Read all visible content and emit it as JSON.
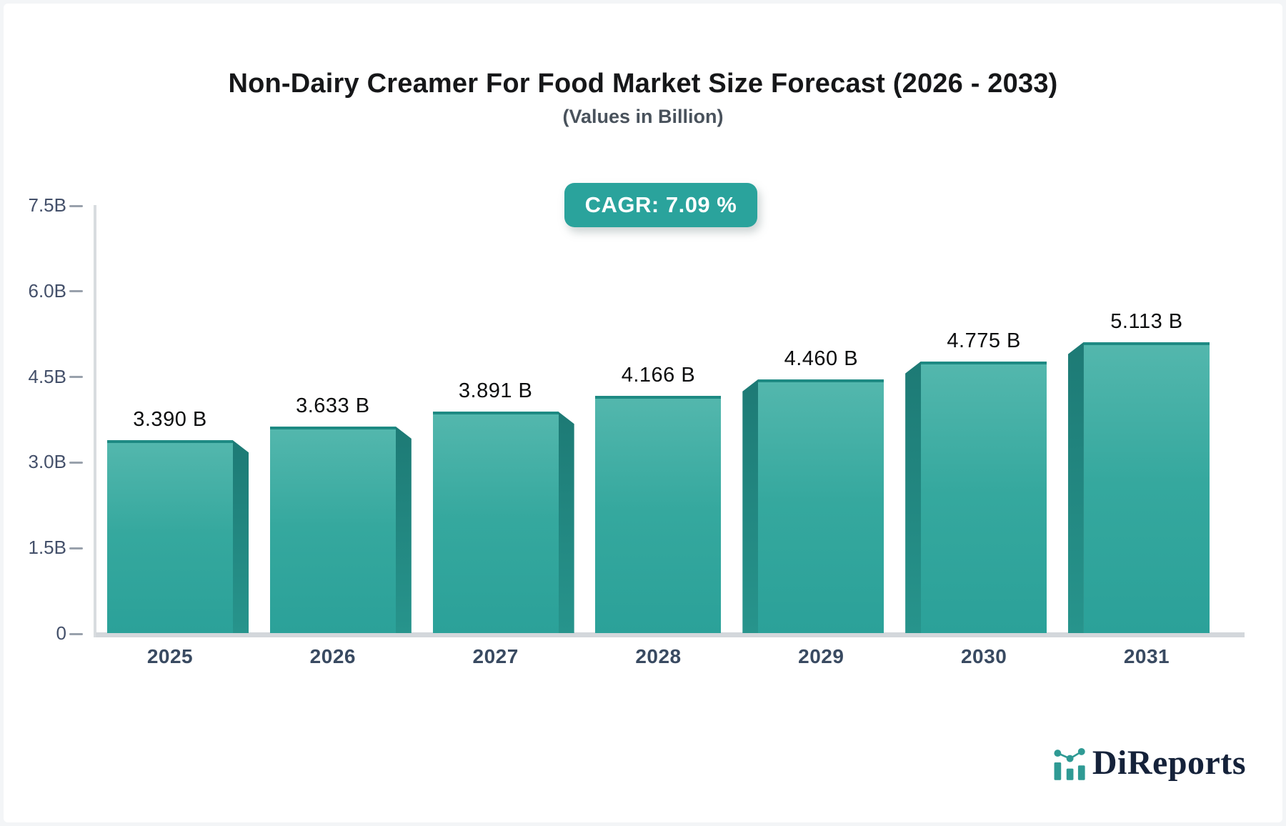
{
  "title": "Non-Dairy Creamer For Food Market Size Forecast (2026 - 2033)",
  "subtitle": "(Values in Billion)",
  "badge": {
    "label": "CAGR: 7.09 %"
  },
  "chart_data": {
    "type": "bar",
    "categories": [
      "2025",
      "2026",
      "2027",
      "2028",
      "2029",
      "2030",
      "2031"
    ],
    "values": [
      3.39,
      3.633,
      3.891,
      4.166,
      4.46,
      4.775,
      5.113
    ],
    "value_labels": [
      "3.390 B",
      "3.633 B",
      "3.891 B",
      "4.166 B",
      "4.460 B",
      "4.775 B",
      "5.113 B"
    ],
    "title": "Non-Dairy Creamer For Food Market Size Forecast (2026 - 2033)",
    "subtitle": "(Values in Billion)",
    "annotation": "CAGR: 7.09 %",
    "xlabel": "",
    "ylabel": "",
    "ylim": [
      0,
      7.5
    ],
    "y_tick_values": [
      0,
      1.5,
      3.0,
      4.5,
      6.0,
      7.5
    ],
    "y_tick_labels": [
      "0",
      "1.5B",
      "3.0B",
      "4.5B",
      "6.0B",
      "7.5B"
    ],
    "grid": false,
    "legend": false,
    "bar_color": "#2ca89e",
    "bar_side_color": "#217d78",
    "value_unit": "Billion"
  },
  "logo": {
    "text": "DiReports",
    "icon": "bar-line-chart-icon",
    "color": "#15223a",
    "icon_color": "#2f9a94"
  },
  "colors": {
    "accent_teal": "#2aa39c",
    "axis_gray": "#d8dcdf",
    "tick_text": "#44506a",
    "category_text": "#394a61"
  }
}
